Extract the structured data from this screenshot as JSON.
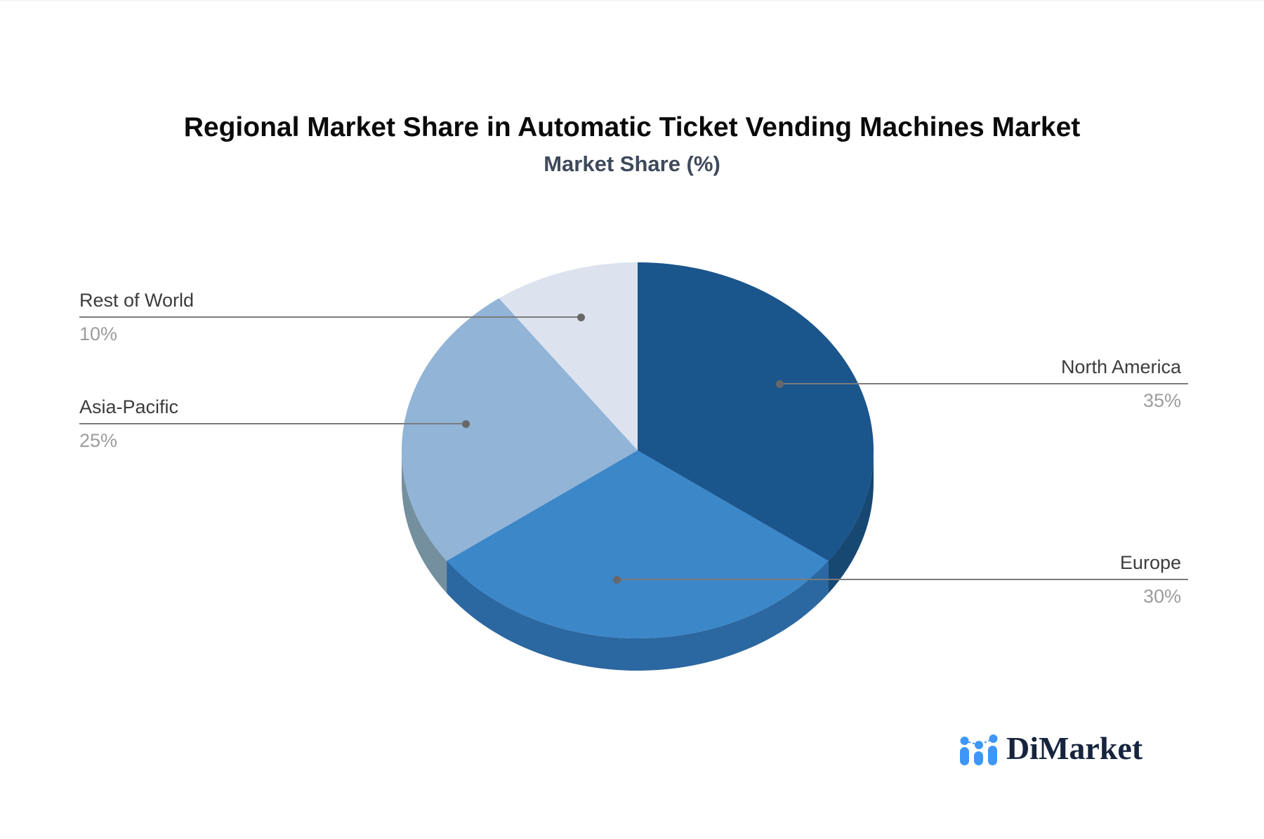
{
  "chart": {
    "title": "Regional Market Share in Automatic Ticket Vending Machines Market",
    "subtitle": "Market Share (%)"
  },
  "chart_data": {
    "type": "pie",
    "style": "3d",
    "title": "Regional Market Share in Automatic Ticket Vending Machines Market",
    "subtitle": "Market Share (%)",
    "unit": "%",
    "start_angle_deg": 0,
    "direction": "clockwise",
    "legend_position": "none",
    "label_style": "callout-lines",
    "slices": [
      {
        "label": "North America",
        "value": 35,
        "display": "35%",
        "color": "#1A558C",
        "side_color": "#164871",
        "cut_color": "#113C5F"
      },
      {
        "label": "Europe",
        "value": 30,
        "display": "30%",
        "color": "#3C87C8",
        "side_color": "#2B67A0",
        "cut_color": "#2B67A0"
      },
      {
        "label": "Asia-Pacific",
        "value": 25,
        "display": "25%",
        "color": "#91B4D7",
        "side_color": "#74909F",
        "cut_color": "#74909F"
      },
      {
        "label": "Rest of World",
        "value": 10,
        "display": "10%",
        "color": "#DCE3EE",
        "side_color": "#B8C2D1",
        "cut_color": "#B8C2D1"
      }
    ]
  },
  "colors": {
    "title_text": "#0A0A0A",
    "subtitle_text": "#3E4A5B",
    "label_text": "#3C3C3C",
    "value_text": "#9C9C9C",
    "leader_line": "#7B7B7B",
    "leader_dot": "#686868",
    "background": "#FFFFFF"
  },
  "branding": {
    "logo_text": "DiMarket",
    "icon": "bar-chart-trend-icon",
    "text_color": "#16243D",
    "icon_color": "#3E97F7"
  }
}
